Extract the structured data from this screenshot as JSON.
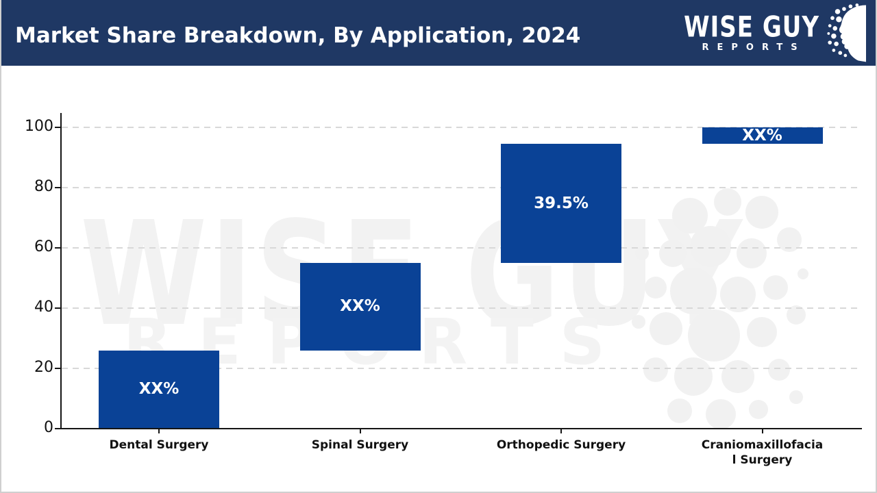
{
  "header": {
    "title": "Market Share Breakdown, By Application, 2024",
    "logo_line1": "WISE GUY",
    "logo_line2": "REPORTS"
  },
  "watermark": {
    "line1": "WISE GUY",
    "line2": "REPORTS"
  },
  "colors": {
    "header_bg": "#1f3864",
    "bar_blue": "#0a4296",
    "gridline": "#d8d8d8",
    "axis": "#151515",
    "value_label": "#ffffff",
    "watermark": "#f2f2f2",
    "border": "#cfcfcf"
  },
  "chart_data": {
    "type": "bar",
    "subtype": "waterfall-floating-bars",
    "title": "Market Share Breakdown, By Application, 2024",
    "categories": [
      "Dental Surgery",
      "Spinal Surgery",
      "Orthopedic Surgery",
      "Craniomaxillofacial Surgery"
    ],
    "category_display_lines": [
      [
        "Dental Surgery"
      ],
      [
        "Spinal Surgery"
      ],
      [
        "Orthopedic Surgery"
      ],
      [
        "Craniomaxillofacia",
        "l Surgery"
      ]
    ],
    "bars": [
      {
        "category": "Dental Surgery",
        "start": 0,
        "end": 26,
        "label": "XX%"
      },
      {
        "category": "Spinal Surgery",
        "start": 26,
        "end": 55,
        "label": "XX%"
      },
      {
        "category": "Orthopedic Surgery",
        "start": 55,
        "end": 94.5,
        "label": "39.5%"
      },
      {
        "category": "Craniomaxillofacial Surgery",
        "start": 94.5,
        "end": 100,
        "label": "XX%"
      }
    ],
    "bar_color": "#0a4296",
    "yticks": [
      0,
      20,
      40,
      60,
      80,
      100
    ],
    "ylim": [
      0,
      104.8
    ],
    "xlabel": "",
    "ylabel": "",
    "grid": "horizontal-dashed",
    "legend": "none"
  }
}
